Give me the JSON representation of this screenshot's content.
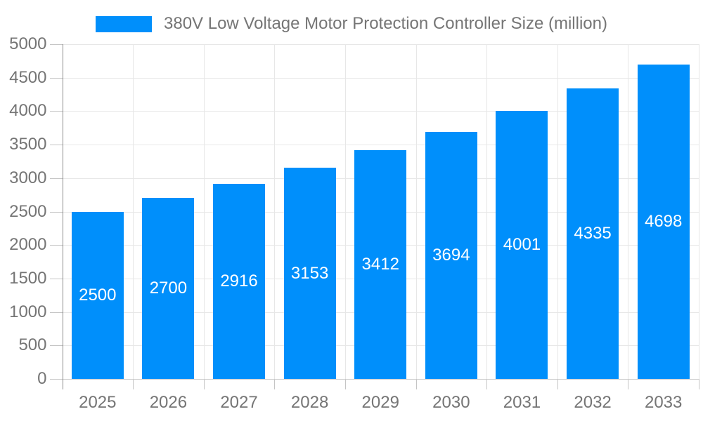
{
  "legend": {
    "label": "380V Low Voltage Motor Protection Controller Size (million)",
    "marker_color": "#008FFB"
  },
  "chart_data": {
    "type": "bar",
    "title": "380V Low Voltage Motor Protection Controller Size (million)",
    "xlabel": "",
    "ylabel": "",
    "categories": [
      "2025",
      "2026",
      "2027",
      "2028",
      "2029",
      "2030",
      "2031",
      "2032",
      "2033"
    ],
    "series": [
      {
        "name": "380V Low Voltage Motor Protection Controller Size (million)",
        "color": "#008FFB",
        "values": [
          2500,
          2700,
          2916,
          3153,
          3412,
          3694,
          4001,
          4335,
          4698
        ]
      }
    ],
    "ylim": [
      0,
      5000
    ],
    "yticks": [
      0,
      500,
      1000,
      1500,
      2000,
      2500,
      3000,
      3500,
      4000,
      4500,
      5000
    ],
    "grid": "both",
    "legend_position": "top",
    "data_labels": {
      "show": true,
      "color": "#ffffff",
      "position": "center"
    }
  }
}
